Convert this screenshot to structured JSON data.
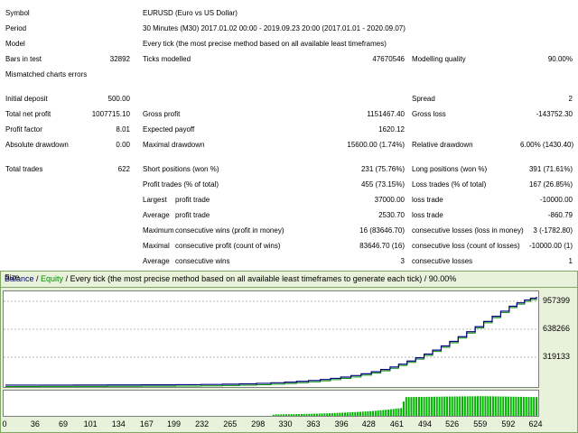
{
  "app": {
    "name": "Strategy Tester Report"
  },
  "colors": {
    "balance_line": "#000080",
    "equity_line": "#009000",
    "size_bars": "#00b400",
    "graph_background": "#e8f1da",
    "graph_border": "#82a765"
  },
  "report": {
    "rows": [
      {
        "l1": "Symbol",
        "l2": "EURUSD (Euro vs US Dollar)"
      },
      {
        "l1": "Period",
        "l2": "30 Minutes (M30) 2017.01.02 00:00 - 2019.09.23 20:00 (2017.01.01 - 2020.09.07)"
      },
      {
        "l1": "Model",
        "l2": "Every tick (the most precise method based on all available least timeframes)"
      },
      {
        "l1": "Bars in test",
        "v1": "32892",
        "l2": "Ticks modelled",
        "v2": "47670546",
        "l3": "Modelling quality",
        "v3": "90.00%"
      },
      {
        "l1": "Mismatched charts errors"
      },
      {
        "gap": true,
        "l1": "Initial deposit",
        "v1": "500.00",
        "l3": "Spread",
        "v3": "2"
      },
      {
        "l1": "Total net profit",
        "v1": "1007715.10",
        "l2": "Gross profit",
        "v2": "1151467.40",
        "l3": "Gross loss",
        "v3": "-143752.30"
      },
      {
        "l1": "Profit factor",
        "v1": "8.01",
        "l2": "Expected payoff",
        "v2": "1620.12"
      },
      {
        "l1": "Absolute drawdown",
        "v1": "0.00",
        "l2": "Maximal drawdown",
        "v2": "15600.00 (1.74%)",
        "l3": "Relative drawdown",
        "v3": "6.00% (1430.40)"
      },
      {
        "gap": true,
        "l1": "Total trades",
        "v1": "622",
        "l2": "Short positions (won %)",
        "v2": "231 (75.76%)",
        "l3": "Long positions (won %)",
        "v3": "391 (71.61%)"
      },
      {
        "l2": "Profit trades (% of total)",
        "v2": "455 (73.15%)",
        "l3": "Loss trades (% of total)",
        "v3": "167 (26.85%)"
      },
      {
        "q": "Largest",
        "l2": "profit trade",
        "v2": "37000.00",
        "l3": "loss trade",
        "v3": "-10000.00"
      },
      {
        "q": "Average",
        "l2": "profit trade",
        "v2": "2530.70",
        "l3": "loss trade",
        "v3": "-860.79"
      },
      {
        "q": "Maximum",
        "l2": "consecutive wins (profit in money)",
        "v2": "16 (83646.70)",
        "l3": "consecutive losses (loss in money)",
        "v3": "3 (-1782.80)"
      },
      {
        "q": "Maximal",
        "l2": "consecutive profit (count of wins)",
        "v2": "83646.70 (16)",
        "l3": "consecutive loss (count of losses)",
        "v3": "-10000.00 (1)"
      },
      {
        "q": "Average",
        "l2": "consecutive wins",
        "v2": "3",
        "l3": "consecutive losses",
        "v3": "1"
      }
    ]
  },
  "graph": {
    "header": {
      "balance": "Balance",
      "sep": " / ",
      "equity": "Equity",
      "rest": " / Every tick (the most precise method based on all available least timeframes to generate each tick) / 90.00%"
    },
    "size_label": "Size"
  },
  "chart_data": {
    "type": "line",
    "title": "Balance / Equity",
    "legend": [
      "Balance",
      "Equity"
    ],
    "x_max": 624,
    "x_ticks": [
      0,
      36,
      69,
      101,
      134,
      167,
      199,
      232,
      265,
      298,
      330,
      363,
      396,
      428,
      461,
      494,
      526,
      559,
      592,
      624
    ],
    "y_gridlines": [
      319133,
      638266,
      957399
    ],
    "y_plot_range": [
      0,
      1050000
    ],
    "series": [
      {
        "name": "Balance",
        "color": "#000080",
        "points": [
          [
            0,
            500
          ],
          [
            40,
            800
          ],
          [
            80,
            1400
          ],
          [
            120,
            2300
          ],
          [
            160,
            3600
          ],
          [
            200,
            5600
          ],
          [
            230,
            8200
          ],
          [
            255,
            11500
          ],
          [
            275,
            15500
          ],
          [
            295,
            21000
          ],
          [
            312,
            27500
          ],
          [
            328,
            35000
          ],
          [
            342,
            43500
          ],
          [
            356,
            53500
          ],
          [
            370,
            65000
          ],
          [
            382,
            78000
          ],
          [
            394,
            93000
          ],
          [
            406,
            110000
          ],
          [
            418,
            130000
          ],
          [
            430,
            153000
          ],
          [
            441,
            179000
          ],
          [
            452,
            208000
          ],
          [
            462,
            240000
          ],
          [
            472,
            275000
          ],
          [
            482,
            313000
          ],
          [
            492,
            355000
          ],
          [
            502,
            400000
          ],
          [
            512,
            448000
          ],
          [
            522,
            499000
          ],
          [
            532,
            553000
          ],
          [
            542,
            610000
          ],
          [
            552,
            668000
          ],
          [
            562,
            727000
          ],
          [
            572,
            786000
          ],
          [
            582,
            845000
          ],
          [
            592,
            901000
          ],
          [
            601,
            940000
          ],
          [
            610,
            972000
          ],
          [
            617,
            992000
          ],
          [
            624,
            1008215
          ]
        ]
      },
      {
        "name": "Equity",
        "color": "#009000",
        "note": "visually coincides with Balance curve"
      }
    ],
    "size_histogram": {
      "label": "Size",
      "color": "#00b400",
      "relative_heights": [
        [
          0,
          0
        ],
        [
          310,
          0
        ],
        [
          316,
          0.06
        ],
        [
          350,
          0.08
        ],
        [
          380,
          0.11
        ],
        [
          405,
          0.15
        ],
        [
          430,
          0.2
        ],
        [
          450,
          0.27
        ],
        [
          465,
          0.33
        ],
        [
          470,
          0.8
        ],
        [
          560,
          0.84
        ],
        [
          624,
          0.8
        ]
      ]
    }
  }
}
